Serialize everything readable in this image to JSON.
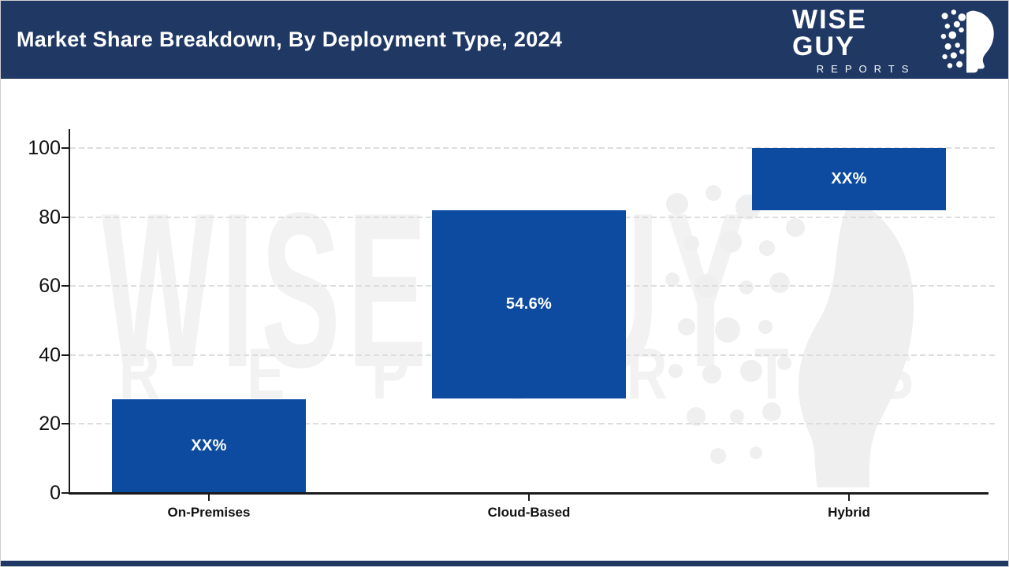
{
  "header": {
    "title": "Market Share Breakdown, By Deployment Type, 2024",
    "bg_color": "#1F3864",
    "logo": {
      "line1": "WISE GUY",
      "line2": "REPORTS"
    }
  },
  "watermark": {
    "line1": "WISE GUY",
    "line2": "R E P O R T S"
  },
  "chart_data": {
    "type": "bar",
    "subtype": "floating-segment (waterfall-style) column chart",
    "title": "Market Share Breakdown, By Deployment Type, 2024",
    "categories": [
      "On-Premises",
      "Cloud-Based",
      "Hybrid"
    ],
    "segments": [
      {
        "category": "On-Premises",
        "from": 0,
        "to": 27.2,
        "label": "XX%"
      },
      {
        "category": "Cloud-Based",
        "from": 27.4,
        "to": 82.0,
        "label": "54.6%"
      },
      {
        "category": "Hybrid",
        "from": 82.0,
        "to": 100,
        "label": "XX%"
      }
    ],
    "visible_value_labels": [
      "XX%",
      "54.6%",
      "XX%"
    ],
    "xlabel": "",
    "ylabel": "",
    "ylim": [
      0,
      100
    ],
    "yticks": [
      0,
      20,
      40,
      60,
      80,
      100
    ],
    "grid": "horizontal dashed",
    "gridline_color": "#dddddd",
    "bar_color": "#0C4BA0",
    "bar_label_color": "#FFFFFF",
    "axis_color": "#1a1a1a",
    "legend": "none"
  }
}
